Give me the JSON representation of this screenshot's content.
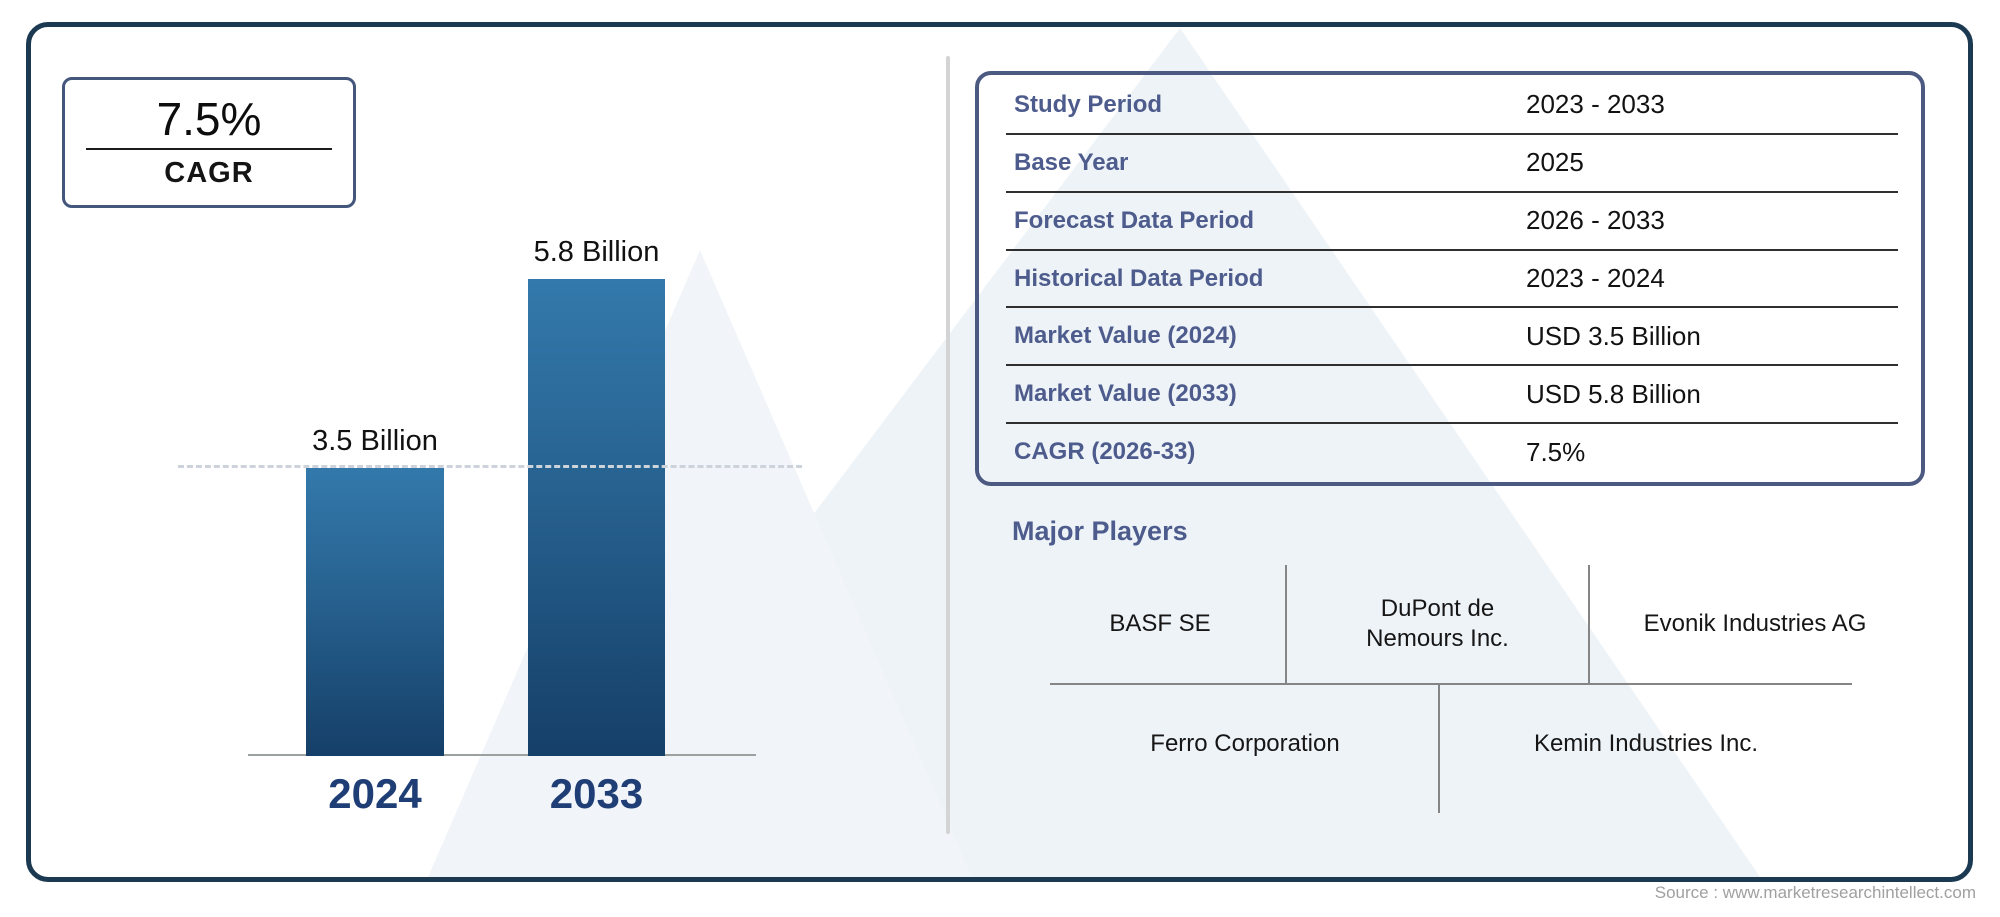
{
  "cagr_box": {
    "value": "7.5%",
    "label": "CAGR"
  },
  "chart_data": {
    "type": "bar",
    "title": "",
    "xlabel": "",
    "ylabel": "",
    "categories": [
      "2024",
      "2033"
    ],
    "values": [
      3.5,
      5.8
    ],
    "value_labels": [
      "3.5 Billion",
      "5.8 Billion"
    ],
    "unit": "USD Billion",
    "ylim": [
      0,
      7.2
    ],
    "grid": false,
    "legend": false,
    "reference_line_at": 3.5,
    "bar_color_top": "#3379ab",
    "bar_color_bottom": "#153f68"
  },
  "info_table": {
    "rows": [
      {
        "label": "Study Period",
        "value": "2023 - 2033"
      },
      {
        "label": "Base Year",
        "value": "2025"
      },
      {
        "label": "Forecast Data Period",
        "value": "2026 - 2033"
      },
      {
        "label": "Historical Data Period",
        "value": "2023 - 2024"
      },
      {
        "label": "Market Value (2024)",
        "value": "USD 3.5 Billion"
      },
      {
        "label": "Market Value (2033)",
        "value": "USD 5.8 Billion"
      },
      {
        "label": "CAGR (2026-33)",
        "value": "7.5%"
      }
    ]
  },
  "major_players": {
    "heading": "Major Players",
    "row1": [
      "BASF SE",
      "DuPont de Nemours Inc.",
      "Evonik Industries AG"
    ],
    "row2": [
      "Ferro Corporation",
      "Kemin Industries Inc."
    ]
  },
  "source": "Source : www.marketresearchintellect.com",
  "colors": {
    "frame_border": "#1b3a52",
    "panel_border": "#4c5a82",
    "accent_text": "#4d5c8c",
    "year_label": "#1e3e75",
    "divider": "#d4d4d4",
    "dashed_reference": "#ccd3da"
  }
}
